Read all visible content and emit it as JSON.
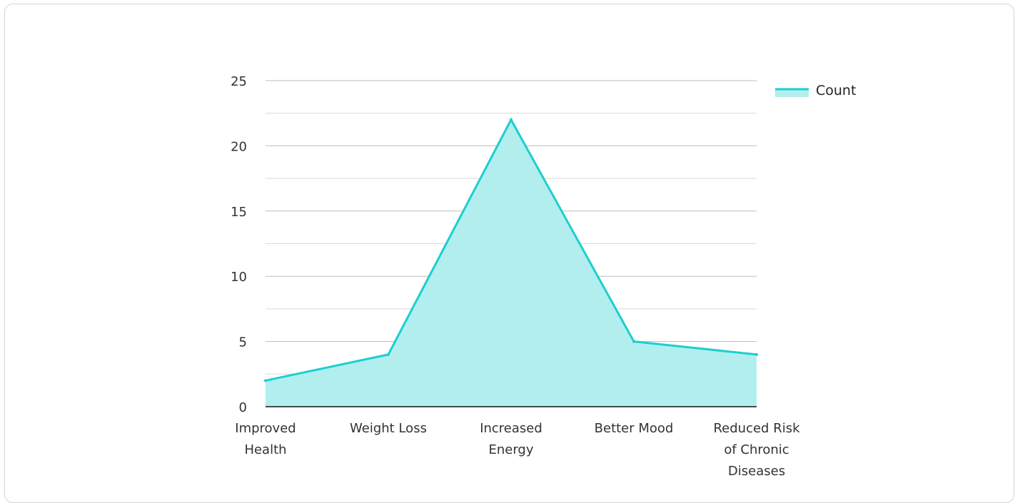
{
  "chart_data": {
    "type": "area",
    "title": "",
    "xlabel": "",
    "ylabel": "",
    "categories": [
      [
        "Improved",
        "Health"
      ],
      [
        "Weight Loss"
      ],
      [
        "Increased",
        "Energy"
      ],
      [
        "Better Mood"
      ],
      [
        "Reduced Risk",
        "of Chronic",
        "Diseases"
      ]
    ],
    "series": [
      {
        "name": "Count",
        "values": [
          2,
          4,
          22,
          5,
          4
        ]
      }
    ],
    "ylim": [
      0,
      25
    ],
    "yticks": [
      0,
      5,
      10,
      15,
      20,
      25
    ],
    "grid": true,
    "legend": "top-right",
    "colors": {
      "line": "#1ccfcf",
      "fill": "#b2eeee",
      "grid": "#d9d9d9",
      "grid_major": "#bdbdbd",
      "axis": "#111111"
    }
  }
}
